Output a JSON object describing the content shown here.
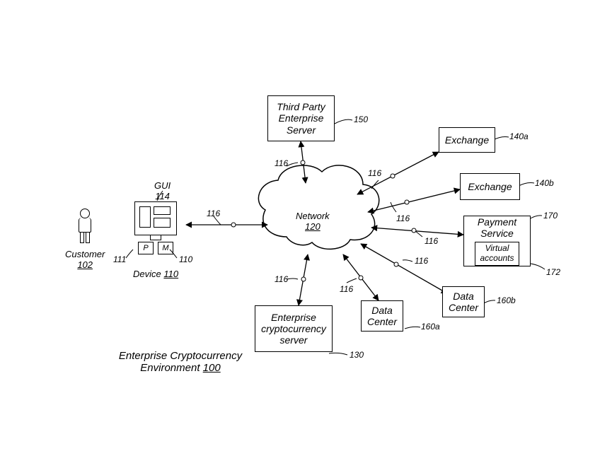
{
  "diagram": {
    "type": "network",
    "title": "Enterprise Cryptocurrency Environment",
    "title_ref": "100",
    "background_color": "#ffffff",
    "line_color": "#000000",
    "font_family": "Arial, italic",
    "nodes": {
      "customer": {
        "label": "Customer",
        "ref": "102"
      },
      "device": {
        "label": "Device",
        "ref": "110"
      },
      "gui": {
        "label": "GUI",
        "ref": "114"
      },
      "p_unit": {
        "label": "P",
        "ref": "111"
      },
      "m_unit": {
        "label": "M",
        "ref": "110"
      },
      "network": {
        "label": "Network",
        "ref": "120"
      },
      "third_party": {
        "label": "Third Party\nEnterprise\nServer",
        "ref": "150"
      },
      "exchange_a": {
        "label": "Exchange",
        "ref": "140a"
      },
      "exchange_b": {
        "label": "Exchange",
        "ref": "140b"
      },
      "payment": {
        "label": "Payment\nService",
        "ref": "170"
      },
      "virtual": {
        "label": "Virtual\naccounts",
        "ref": "172"
      },
      "data_a": {
        "label": "Data\nCenter",
        "ref": "160a"
      },
      "data_b": {
        "label": "Data\nCenter",
        "ref": "160b"
      },
      "ecs": {
        "label": "Enterprise\ncryptocurrency\nserver",
        "ref": "130"
      }
    },
    "link_label": "116",
    "edges": [
      [
        "device",
        "network"
      ],
      [
        "network",
        "third_party"
      ],
      [
        "network",
        "exchange_a"
      ],
      [
        "network",
        "exchange_b"
      ],
      [
        "network",
        "payment"
      ],
      [
        "network",
        "data_a"
      ],
      [
        "network",
        "data_b"
      ],
      [
        "network",
        "ecs"
      ]
    ]
  }
}
